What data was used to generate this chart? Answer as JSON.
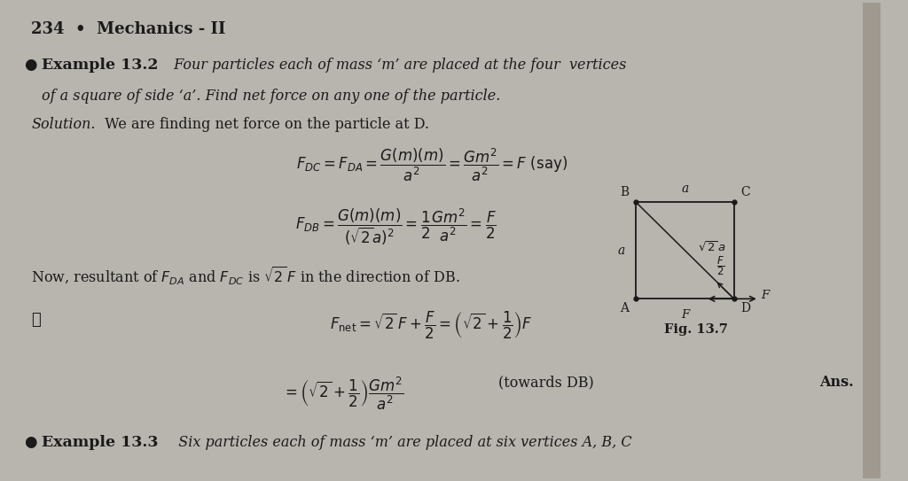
{
  "bg_outer": "#b8b4ae",
  "bg_page": "#e8e4de",
  "font_color": "#1a1a1a",
  "title": "234  •  Mechanics - II",
  "bullet": "●",
  "ex_label": "Example 13.2",
  "ex_text1": " Four particles each of mass ‘m’ are placed at the four  vertices",
  "ex_text2": "of a square of side ‘a’. Find net force on any one of the particle.",
  "sol_italic": "Solution.",
  "sol_rest": " We are finding net force on the particle at D.",
  "eq1": "$F_{DC} =F_{DA} =\\dfrac{G(m)(m)}{a^2}=\\dfrac{Gm^2}{a^2}=F\\ \\mathrm{(say)}$",
  "eq2": "$F_{DB} =\\dfrac{G(m)(m)}{(\\sqrt{2}a)^2}=\\dfrac{1}{2}\\dfrac{Gm^2}{a^2}=\\dfrac{F}{2}$",
  "now_text": "Now, resultant of $F_{DA}$ and $F_{DC}$ is $\\sqrt{2}\\,F$ in the direction of DB.",
  "therefore": "∴",
  "eq3": "$F_{\\mathrm{net}} =\\sqrt{2}\\,F+\\dfrac{F}{2}=\\left(\\sqrt{2}+\\dfrac{1}{2}\\right)F$",
  "eq4a": "$=\\left(\\sqrt{2}+\\dfrac{1}{2}\\right)\\dfrac{Gm^2}{a^2}$",
  "eq4b": "(towards DB)",
  "ans": "Ans.",
  "ex2_label": "Example 13.3",
  "ex2_text": "  Six particles each of mass ‘m’ are placed at six vertices A, B, C",
  "fig_label": "Fig. 13.7",
  "diag_side": "a",
  "diag_diag": "$\\sqrt{2}\\,a$",
  "diag_F": "F",
  "diag_F2": "$\\frac{F}{2}$",
  "vertices": [
    "A",
    "B",
    "C",
    "D"
  ]
}
